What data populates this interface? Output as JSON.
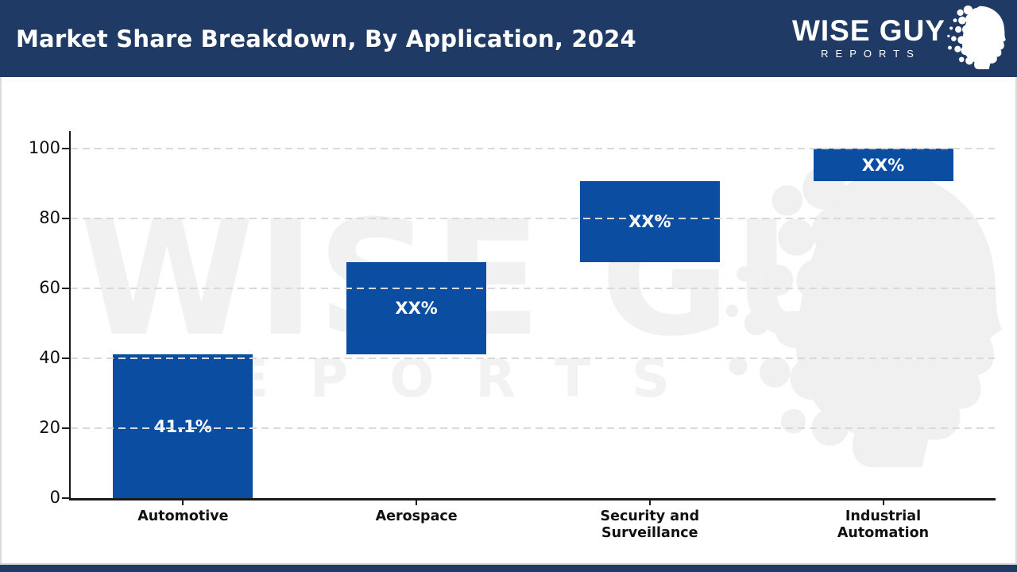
{
  "header": {
    "title": "Market Share Breakdown, By Application, 2024",
    "bg_color": "#203a66",
    "logo": {
      "line1": "WISE GUY",
      "line2": "REPORTS",
      "icon": "dotted-head-profile-icon"
    }
  },
  "watermark": {
    "line1": "WISE GUY",
    "line2": "REPORTS"
  },
  "chart_data": {
    "type": "bar",
    "subtype": "floating-waterfall",
    "title": "Market Share Breakdown, By Application, 2024",
    "categories": [
      "Automotive",
      "Aerospace",
      "Security and\nSurveillance",
      "Industrial\nAutomation"
    ],
    "series": [
      {
        "name": "Market Share (%)",
        "segments": [
          {
            "category": "Automotive",
            "start": 0,
            "end": 41.1,
            "label": "41.1%"
          },
          {
            "category": "Aerospace",
            "start": 41.1,
            "end": 67.6,
            "label": "XX%"
          },
          {
            "category": "Security and Surveillance",
            "start": 67.6,
            "end": 90.6,
            "label": "XX%"
          },
          {
            "category": "Industrial Automation",
            "start": 90.6,
            "end": 100,
            "label": "XX%"
          }
        ]
      }
    ],
    "ylim": [
      0,
      100
    ],
    "yticks": [
      0,
      20,
      40,
      60,
      80,
      100
    ],
    "xlabel": "",
    "ylabel": "",
    "grid": "horizontal dashed, drawn over bars",
    "legend": "none",
    "bar_color": "#0b4da1",
    "bar_label_color": "#ffffff"
  },
  "footer": {
    "bg_color": "#203a66"
  }
}
